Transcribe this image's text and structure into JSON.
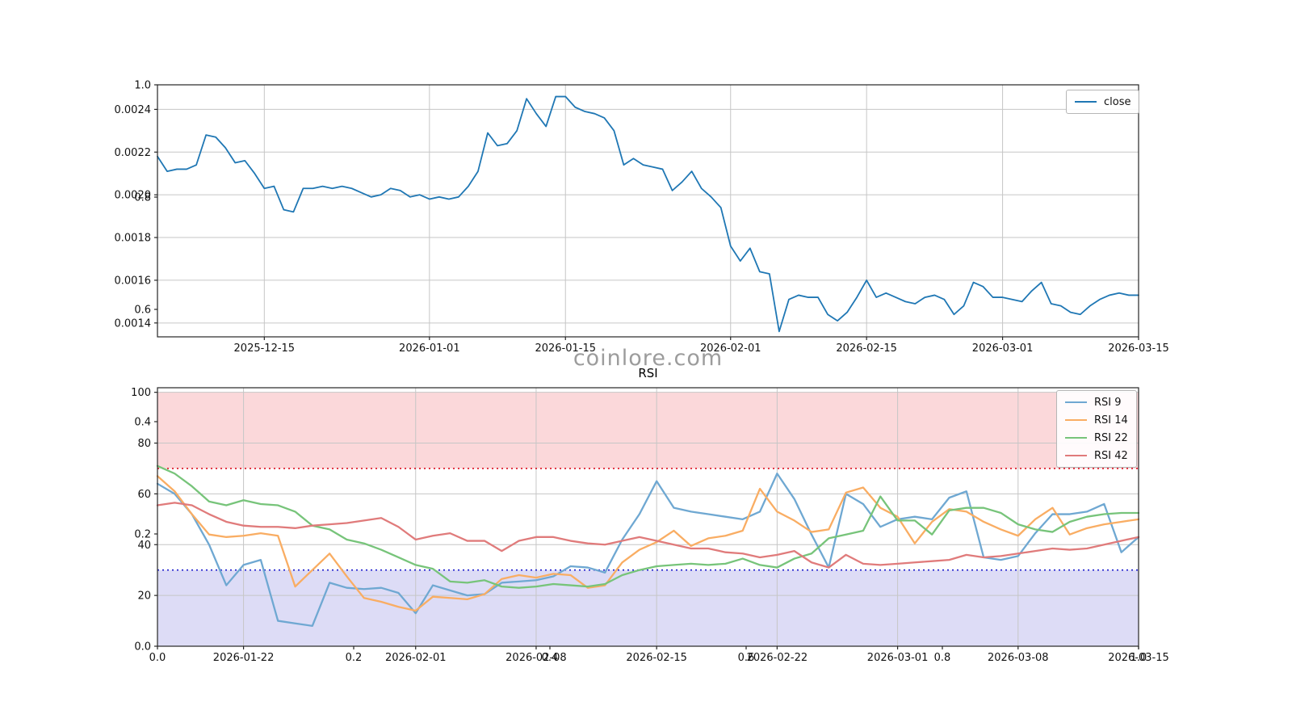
{
  "watermark": "coinlore.com",
  "overlay_axis": {
    "x_tick_labels": [
      "0.0",
      "0.2",
      "0.4",
      "0.6",
      "0.8",
      "1.0"
    ],
    "y_tick_labels": [
      "0.0",
      "0.2",
      "0.4",
      "0.6",
      "0.8",
      "1.0"
    ]
  },
  "chart_data": [
    {
      "type": "line",
      "title": "",
      "x_start": "2025-12-04",
      "x_end": "2026-03-15",
      "x_freq": "daily",
      "x_tick_labels": [
        "2025-12-15",
        "2026-01-01",
        "2026-01-15",
        "2026-02-01",
        "2026-02-15",
        "2026-03-01",
        "2026-03-15"
      ],
      "y_tick_labels": [
        "0.0024",
        "0.0022",
        "0.0020",
        "0.0018",
        "0.0016",
        "0.0014"
      ],
      "y_tick_values": [
        0.0024,
        0.0022,
        0.002,
        0.0018,
        0.0016,
        0.0014
      ],
      "ylim": [
        0.001335,
        0.002515
      ],
      "grid": true,
      "legend_position": "upper right",
      "series": [
        {
          "name": "close",
          "color": "#1f77b4",
          "values": [
            0.00218,
            0.00211,
            0.00212,
            0.00212,
            0.00214,
            0.00228,
            0.00227,
            0.00222,
            0.00215,
            0.00216,
            0.0021,
            0.00203,
            0.00204,
            0.00193,
            0.00192,
            0.00203,
            0.00203,
            0.00204,
            0.00203,
            0.00204,
            0.00203,
            0.00201,
            0.00199,
            0.002,
            0.00203,
            0.00202,
            0.00199,
            0.002,
            0.00198,
            0.00199,
            0.00198,
            0.00199,
            0.00204,
            0.00211,
            0.00229,
            0.00223,
            0.00224,
            0.0023,
            0.00245,
            0.00238,
            0.00232,
            0.00246,
            0.00246,
            0.00241,
            0.00239,
            0.00238,
            0.00236,
            0.0023,
            0.00214,
            0.00217,
            0.00214,
            0.00213,
            0.00212,
            0.00202,
            0.00206,
            0.00211,
            0.00203,
            0.00199,
            0.00194,
            0.00176,
            0.00169,
            0.00175,
            0.00164,
            0.00163,
            0.00136,
            0.00151,
            0.00153,
            0.00152,
            0.00152,
            0.00144,
            0.00141,
            0.00145,
            0.00152,
            0.0016,
            0.00152,
            0.00154,
            0.00152,
            0.0015,
            0.00149,
            0.00152,
            0.00153,
            0.00151,
            0.00144,
            0.00148,
            0.00159,
            0.00157,
            0.00152,
            0.00152,
            0.00151,
            0.0015,
            0.00155,
            0.00159,
            0.00149,
            0.00148,
            0.00145,
            0.00144,
            0.00148,
            0.00151,
            0.00153,
            0.00154,
            0.00153,
            0.00153
          ]
        }
      ]
    },
    {
      "type": "line",
      "title": "RSI",
      "x_start": "2026-01-17",
      "x_end": "2026-03-15",
      "x_freq": "daily",
      "x_tick_labels": [
        "2026-01-22",
        "2026-02-01",
        "2026-02-08",
        "2026-02-15",
        "2026-02-22",
        "2026-03-01",
        "2026-03-08",
        "2026-03-15"
      ],
      "y_tick_labels": [
        "100",
        "80",
        "60",
        "40",
        "20"
      ],
      "y_tick_values": [
        100,
        80,
        60,
        40,
        20
      ],
      "ylim": [
        0,
        101.8
      ],
      "grid": true,
      "legend_position": "upper right",
      "overbought_level": 70,
      "oversold_level": 30,
      "overbought_band": [
        70,
        100
      ],
      "oversold_band": [
        0,
        30
      ],
      "overbought_band_color": "#fbd8da",
      "oversold_band_color": "#dddcf6",
      "overbought_line_color": "#dc1020",
      "oversold_line_color": "#1a1acc",
      "series": [
        {
          "name": "RSI 9",
          "color": "#6fa8d2",
          "values": [
            64,
            60,
            52,
            40,
            24,
            32,
            34,
            10,
            9,
            8,
            25,
            23,
            22.5,
            23,
            21,
            13,
            24,
            22,
            20,
            20.5,
            25,
            25.5,
            26,
            27.5,
            31.5,
            31,
            29,
            42,
            52,
            65,
            54.5,
            53,
            52,
            51,
            50,
            53,
            68,
            58,
            44,
            31,
            60,
            56,
            47,
            50,
            51,
            50,
            58.5,
            61,
            35,
            34,
            35.5,
            44.5,
            52,
            52,
            53,
            56,
            37,
            43
          ]
        },
        {
          "name": "RSI 14",
          "color": "#f9ad63",
          "values": [
            67,
            61,
            52,
            44,
            43,
            43.5,
            44.5,
            43.5,
            23.5,
            30,
            36.5,
            27.5,
            19,
            17.5,
            15.5,
            14,
            19.5,
            19,
            18.5,
            20.5,
            26.5,
            28,
            27,
            28.5,
            28,
            23,
            24,
            33,
            38,
            41,
            45.5,
            39.5,
            42.5,
            43.5,
            45.5,
            62,
            53,
            49.5,
            45,
            46,
            60.5,
            62.5,
            54.5,
            51,
            40.5,
            49,
            54,
            53,
            49,
            46,
            43.5,
            50,
            54.5,
            44,
            46.5,
            48,
            49,
            50
          ]
        },
        {
          "name": "RSI 22",
          "color": "#77c47a",
          "values": [
            71,
            68,
            63,
            57,
            55.5,
            57.5,
            56,
            55.5,
            53,
            47.5,
            46,
            42,
            40.5,
            38,
            35,
            32,
            30.5,
            25.5,
            25,
            26,
            23.5,
            23,
            23.5,
            24.5,
            24,
            23.5,
            24.5,
            28,
            30,
            31.5,
            32,
            32.5,
            32,
            32.5,
            34.5,
            32,
            31,
            34.5,
            36.5,
            42.5,
            44,
            45.5,
            59,
            49.5,
            49.5,
            44,
            53.5,
            54.5,
            54.5,
            52.5,
            48,
            46,
            45,
            49,
            51,
            52,
            52.5,
            52.5
          ]
        },
        {
          "name": "RSI 42",
          "color": "#e07b7b",
          "values": [
            55.5,
            56.5,
            55.5,
            52,
            49,
            47.5,
            47,
            47,
            46.5,
            47.5,
            48,
            48.5,
            49.5,
            50.5,
            47,
            42,
            43.5,
            44.5,
            41.5,
            41.5,
            37.5,
            41.5,
            43,
            43,
            41.5,
            40.5,
            40,
            41.5,
            43,
            41.5,
            40,
            38.5,
            38.5,
            37,
            36.5,
            35,
            36,
            37.5,
            33,
            31,
            36,
            32.5,
            32,
            32.5,
            33,
            33.5,
            34,
            36,
            35,
            35.5,
            36.5,
            37.5,
            38.5,
            38,
            38.5,
            40,
            41.5,
            43
          ]
        }
      ]
    }
  ]
}
